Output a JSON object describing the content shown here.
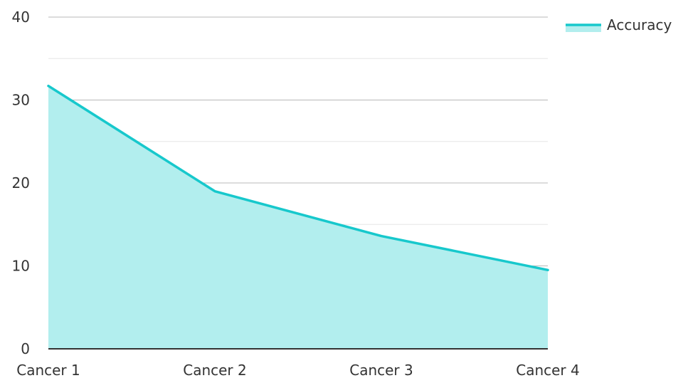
{
  "chart_data": {
    "type": "area",
    "title": "",
    "xlabel": "",
    "ylabel": "",
    "categories": [
      "Cancer 1",
      "Cancer 2",
      "Cancer 3",
      "Cancer 4"
    ],
    "series": [
      {
        "name": "Accuracy",
        "values": [
          31.7,
          19.0,
          13.6,
          9.5
        ],
        "line_color": "#17c8cc",
        "fill_color": "#b2eeee"
      }
    ],
    "ylim": [
      0,
      40
    ],
    "yticks": [
      0,
      10,
      20,
      30,
      40
    ],
    "grid": true,
    "minor_grid": true,
    "legend_position": "top-right"
  },
  "colors": {
    "major_grid": "#b8b8b8",
    "minor_grid": "#e6e6e6",
    "axis": "#333333",
    "text": "#333333"
  }
}
